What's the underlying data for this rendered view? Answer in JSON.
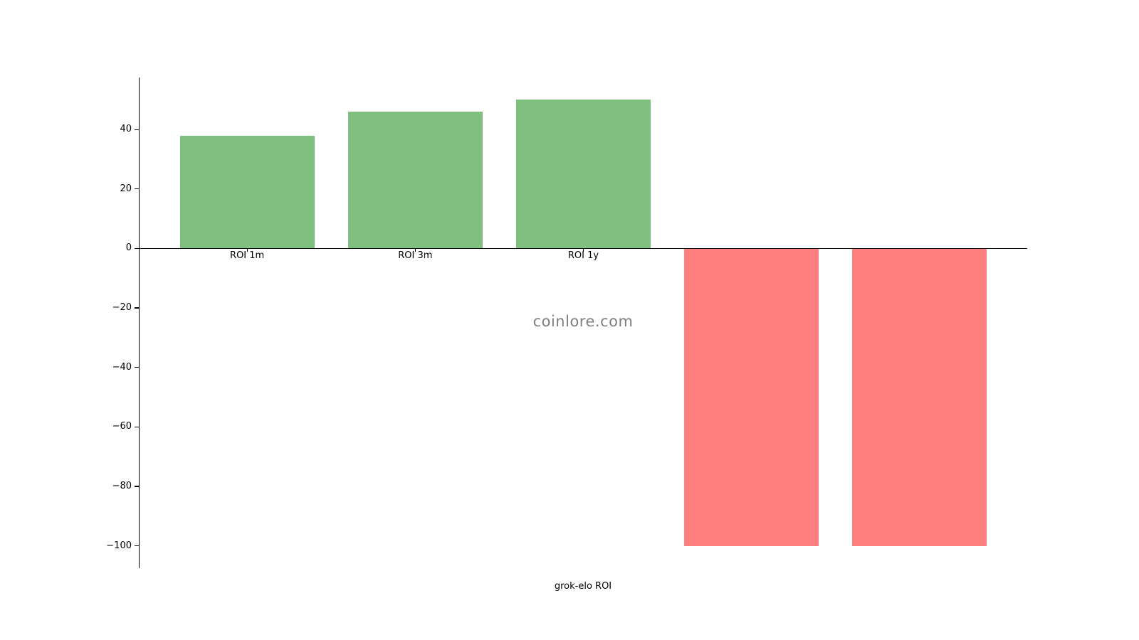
{
  "watermark": {
    "text": "coinlore.com",
    "color": "#7f7f7f"
  },
  "chart_data": {
    "type": "bar",
    "title": "",
    "xlabel": "grok-elo ROI",
    "ylabel": "",
    "categories": [
      "ROI 1m",
      "ROI 3m",
      "ROI 1y",
      "",
      ""
    ],
    "values": [
      38,
      46,
      50,
      -100,
      -100
    ],
    "series": [
      {
        "name": "grok-elo ROI",
        "values": [
          38,
          46,
          50,
          -100,
          -100
        ]
      }
    ],
    "positive_color": "#7fbf7f",
    "negative_color": "#ff7f7f",
    "axis_color": "#000000",
    "tick_label_color": "#000000",
    "yticks": [
      40,
      20,
      0,
      -20,
      -40,
      -60,
      -80,
      -100
    ],
    "ylim": [
      -107.5,
      57.5
    ],
    "xlim": [
      -0.64,
      4.64
    ],
    "bar_width": 0.8,
    "grid": false,
    "legend_position": "none"
  }
}
